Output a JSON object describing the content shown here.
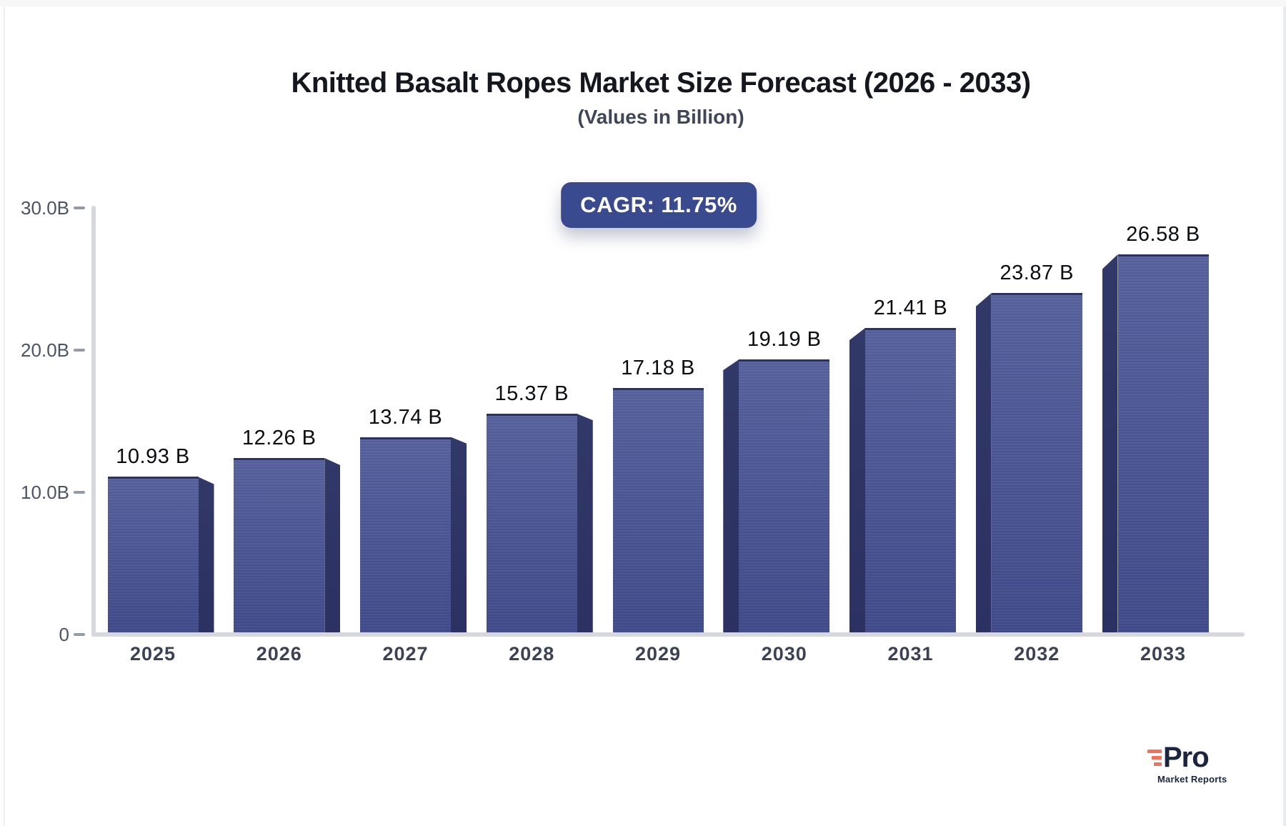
{
  "page": {
    "title": "Knitted Basalt Ropes Market Size Forecast (2026 - 2033)",
    "subtitle": "(Values in Billion)",
    "cagr_badge": "CAGR: 11.75%"
  },
  "chart_data": {
    "type": "bar",
    "title": "Knitted Basalt Ropes Market Size Forecast (2026 - 2033)",
    "subtitle": "(Values in Billion)",
    "cagr_percent": 11.75,
    "categories": [
      "2025",
      "2026",
      "2027",
      "2028",
      "2029",
      "2030",
      "2031",
      "2032",
      "2033"
    ],
    "values": [
      10.93,
      12.26,
      13.74,
      15.37,
      17.18,
      19.19,
      21.41,
      23.87,
      26.58
    ],
    "value_labels": [
      "10.93 B",
      "12.26 B",
      "13.74 B",
      "15.37 B",
      "17.18 B",
      "19.19 B",
      "21.41 B",
      "23.87 B",
      "26.58 B"
    ],
    "y_ticks": [
      {
        "label": "0",
        "value": 0
      },
      {
        "label": "10.0B",
        "value": 10
      },
      {
        "label": "20.0B",
        "value": 20
      },
      {
        "label": "30.0B",
        "value": 30
      }
    ],
    "ylim": [
      0,
      30
    ],
    "xlabel": "",
    "ylabel": "",
    "grid": false,
    "legend_position": "none",
    "style": "3d-perspective-bars"
  },
  "logo": {
    "brand": "Pro",
    "tagline": "Market Reports"
  },
  "colors": {
    "bar_top": "#57629e",
    "bar_bottom": "#414b8b",
    "bar_side": "#2b3161",
    "badge_bg": "#3a4a8e",
    "badge_text": "#ffffff",
    "axis": "#d7d8de",
    "tick": "#959aa8",
    "value_label_text": "#0a0c10",
    "x_label_text": "#3a4254",
    "y_label_text": "#4b5366",
    "title_text": "#15171f",
    "subtitle_text": "#3e4657",
    "logo_accent": "#f3705a",
    "logo_navy": "#1d2440"
  }
}
